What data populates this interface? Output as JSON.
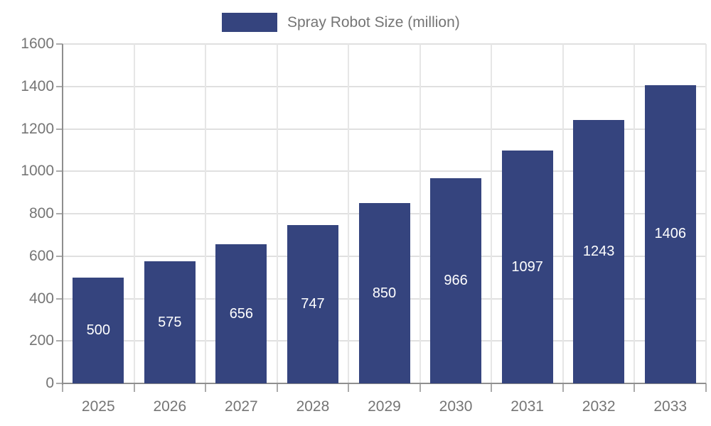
{
  "legend": {
    "label": "Spray Robot Size (million)"
  },
  "colors": {
    "bar": "#35447E",
    "axis": "#8E8E8E",
    "tick": "#ABABAB",
    "grid_h": "#E0E0E0",
    "grid_v": "#E6E6E6",
    "tick_label": "#757575",
    "legend_text": "#757575",
    "bar_label": "#FFFFFF",
    "background": "#FFFFFF"
  },
  "chart_data": {
    "type": "bar",
    "title": "Spray Robot Size (million)",
    "categories": [
      "2025",
      "2026",
      "2027",
      "2028",
      "2029",
      "2030",
      "2031",
      "2032",
      "2033"
    ],
    "values": [
      500,
      575,
      656,
      747,
      850,
      966,
      1097,
      1243,
      1406
    ],
    "xlabel": "",
    "ylabel": "",
    "ylim": [
      0,
      1600
    ],
    "yticks": [
      0,
      200,
      400,
      600,
      800,
      1000,
      1200,
      1400,
      1600
    ],
    "grid": true,
    "legend_position": "top-center",
    "bar_labels_visible": true,
    "bar_label_position": "center"
  }
}
